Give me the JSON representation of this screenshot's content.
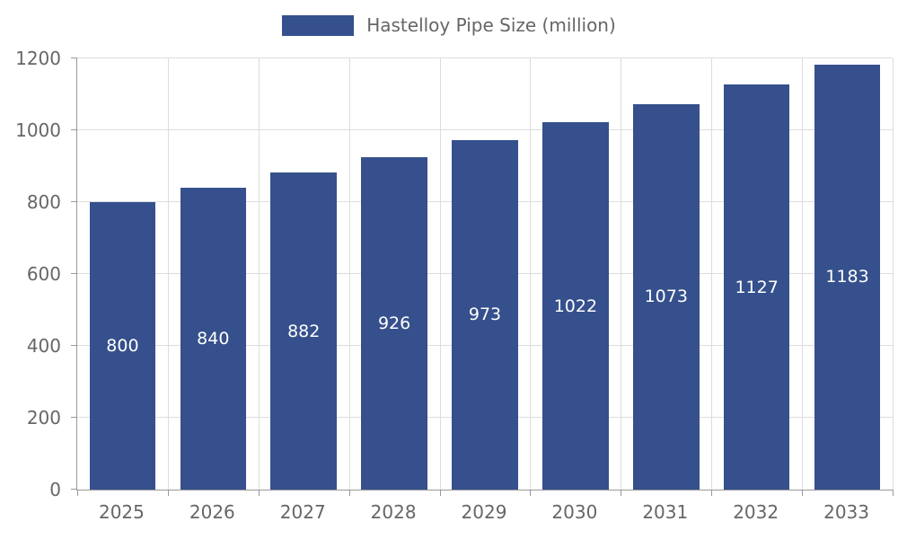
{
  "chart_data": {
    "type": "bar",
    "title": "Hastelloy Pipe Size (million)",
    "categories": [
      "2025",
      "2026",
      "2027",
      "2028",
      "2029",
      "2030",
      "2031",
      "2032",
      "2033"
    ],
    "values": [
      800,
      840,
      882,
      926,
      973,
      1022,
      1073,
      1127,
      1183
    ],
    "xlabel": "",
    "ylabel": "",
    "ylim": [
      0,
      1200
    ],
    "yticks": [
      0,
      200,
      400,
      600,
      800,
      1000,
      1200
    ],
    "grid": true,
    "legend_position": "top",
    "legend_label": "Hastelloy Pipe Size (million)",
    "colors": {
      "bar": "#35508c",
      "grid": "#dddddd",
      "axis": "#999999",
      "tick_text": "#666666",
      "bar_label": "#ffffff",
      "background": "#ffffff"
    }
  }
}
